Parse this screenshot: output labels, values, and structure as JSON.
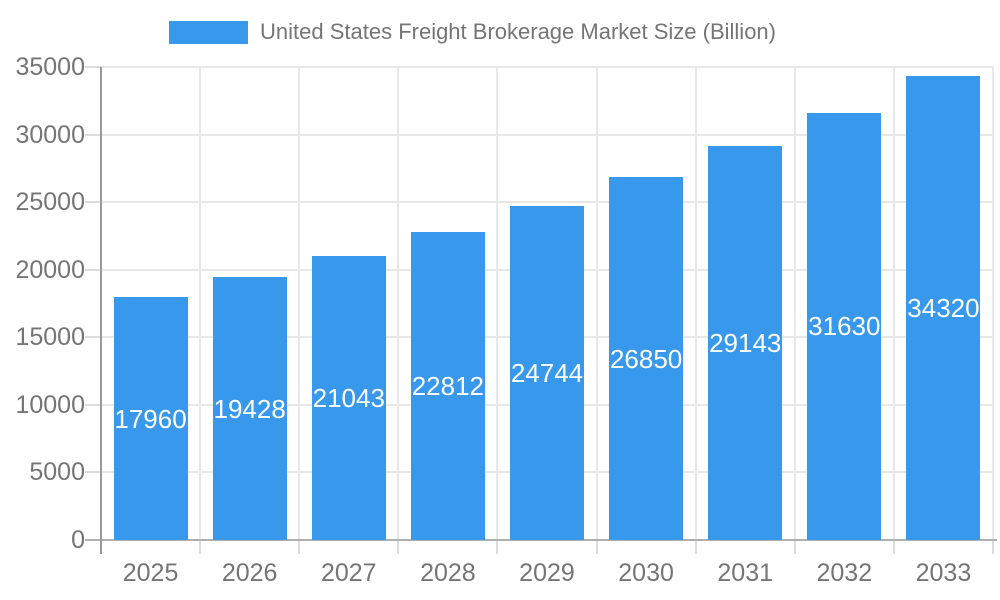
{
  "chart_data": {
    "type": "bar",
    "title": "United States Freight Brokerage Market Size (Billion)",
    "categories": [
      "2025",
      "2026",
      "2027",
      "2028",
      "2029",
      "2030",
      "2031",
      "2032",
      "2033"
    ],
    "values": [
      17960,
      19428,
      21043,
      22812,
      24744,
      26850,
      29143,
      31630,
      34320
    ],
    "series": [
      {
        "name": "United States Freight Brokerage Market Size (Billion)",
        "values": [
          17960,
          19428,
          21043,
          22812,
          24744,
          26850,
          29143,
          31630,
          34320
        ]
      }
    ],
    "xlabel": "",
    "ylabel": "",
    "ylim": [
      0,
      35000
    ],
    "yticks": [
      0,
      5000,
      10000,
      15000,
      20000,
      25000,
      30000,
      35000
    ],
    "grid": true,
    "legend": {
      "position": "top-center",
      "label": "United States Freight Brokerage Market Size (Billion)"
    },
    "bar_labels_inside": true,
    "colors": {
      "bar": "#3899EC",
      "bar_label_text": "#FFFFFF",
      "axis_text": "#757575",
      "gridline": "#E8E8E8",
      "y_axis_line": "#999999",
      "x_axis_line": "#B0B0B0",
      "tick": "#DCDCDC"
    }
  }
}
